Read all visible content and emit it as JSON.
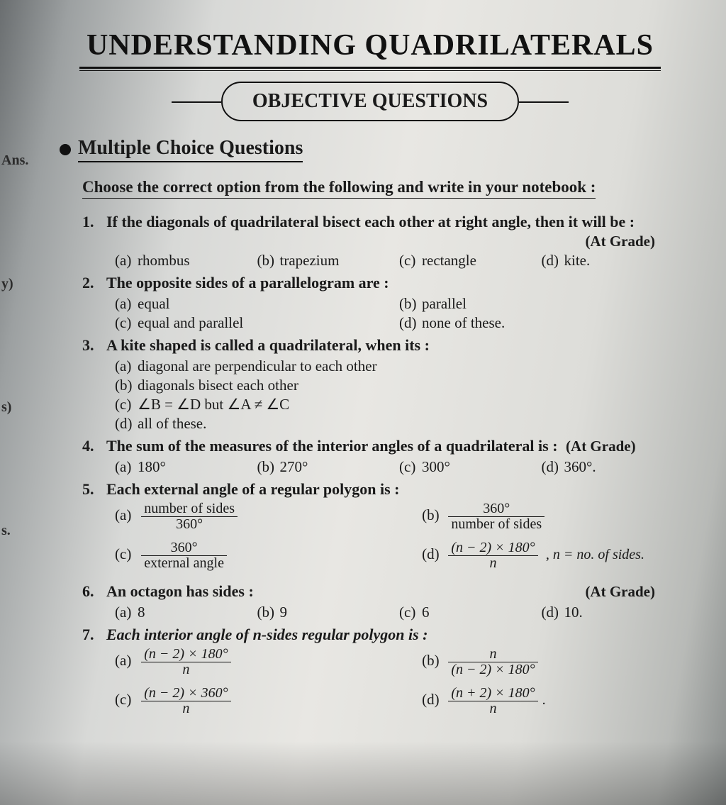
{
  "edge": {
    "ans": "Ans.",
    "y": "y)",
    "s1": "s)",
    "s2": "s."
  },
  "header": {
    "title": "UNDERSTANDING QUADRILATERALS",
    "capsule": "OBJECTIVE QUESTIONS",
    "mcq": "Multiple Choice Questions",
    "instruction": "Choose the correct option from the following and write in your notebook :"
  },
  "grade_label": "(At Grade)",
  "q1": {
    "num": "1.",
    "text": "If the diagonals of quadrilateral bisect each other at right angle, then it will be :",
    "a": "rhombus",
    "b": "trapezium",
    "c": "rectangle",
    "d": "kite."
  },
  "q2": {
    "num": "2.",
    "text": "The opposite sides of a parallelogram are :",
    "a": "equal",
    "b": "parallel",
    "c": "equal and parallel",
    "d": "none of these."
  },
  "q3": {
    "num": "3.",
    "text": "A kite shaped is called a quadrilateral, when its :",
    "a": "diagonal are perpendicular to each other",
    "b": "diagonals bisect each other",
    "c": "∠B = ∠D but ∠A ≠ ∠C",
    "d": "all of these."
  },
  "q4": {
    "num": "4.",
    "text": "The sum of the measures of the interior angles of a quadrilateral is :",
    "a": "180°",
    "b": "270°",
    "c": "300°",
    "d": "360°."
  },
  "q5": {
    "num": "5.",
    "text": "Each external angle of a regular polygon is :",
    "a_top": "number of sides",
    "a_bot": "360°",
    "b_top": "360°",
    "b_bot": "number of sides",
    "c_top": "360°",
    "c_bot": "external angle",
    "d_top": "(n − 2) × 180°",
    "d_bot": "n",
    "d_tail": ",  n = no. of sides."
  },
  "q6": {
    "num": "6.",
    "text": "An octagon has sides :",
    "a": "8",
    "b": "9",
    "c": "6",
    "d": "10."
  },
  "q7": {
    "num": "7.",
    "text": "Each interior angle of n-sides regular polygon is :",
    "a_top": "(n − 2) × 180°",
    "a_bot": "n",
    "b_top": "n",
    "b_bot": "(n − 2) × 180°",
    "c_top": "(n − 2) × 360°",
    "c_bot": "n",
    "d_top": "(n + 2) × 180°",
    "d_bot": "n",
    "d_tail": "."
  },
  "labels": {
    "a": "(a)",
    "b": "(b)",
    "c": "(c)",
    "d": "(d)"
  }
}
